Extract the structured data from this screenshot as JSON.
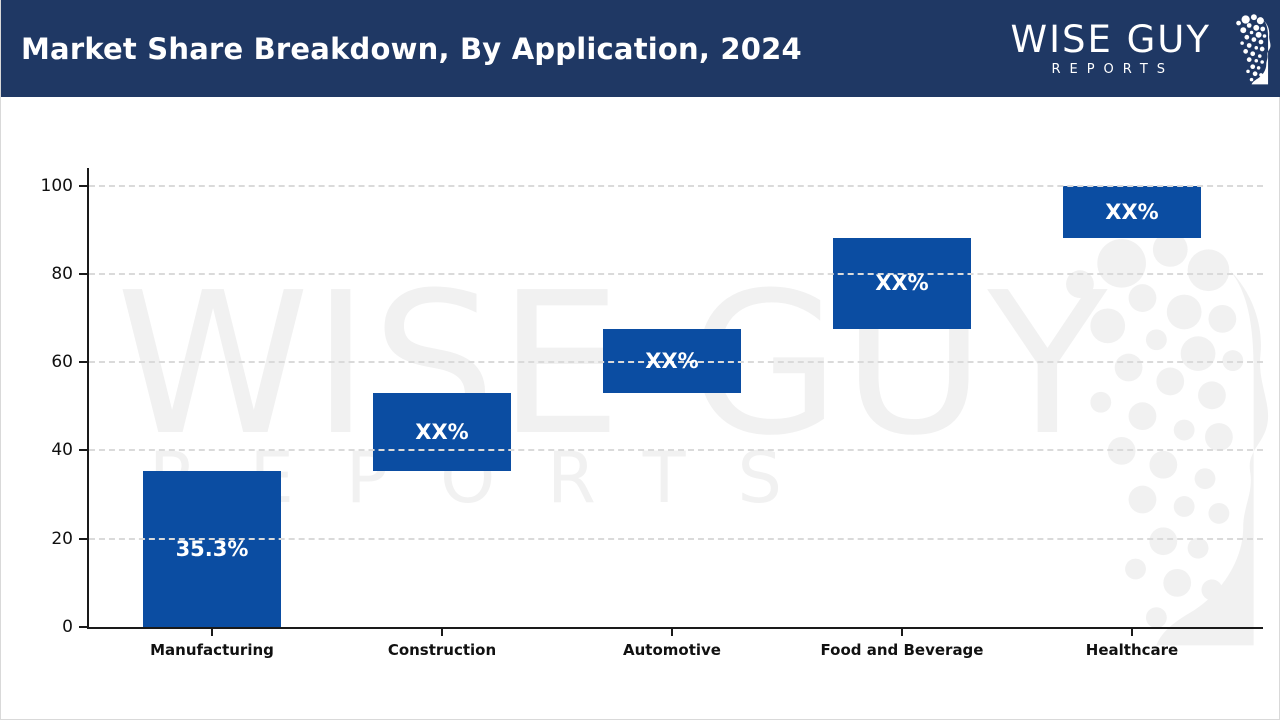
{
  "header": {
    "title": "Market Share Breakdown, By Application, 2024",
    "bg_color": "#1f3864",
    "logo": {
      "line1": "WISE GUY",
      "line2": "REPORTS",
      "head_icon": "dotted-head-icon"
    }
  },
  "watermark": {
    "line1": "WISE GUY",
    "line2": "REPORTS",
    "head_icon": "dotted-head-icon"
  },
  "chart_data": {
    "type": "bar",
    "subtype": "waterfall",
    "title": "Market Share Breakdown, By Application, 2024",
    "xlabel": "",
    "ylabel": "",
    "categories": [
      "Manufacturing",
      "Construction",
      "Automotive",
      "Food and Beverage",
      "Healthcare"
    ],
    "segments": [
      {
        "category": "Manufacturing",
        "start": 0,
        "end": 35.3,
        "label": "35.3%"
      },
      {
        "category": "Construction",
        "start": 35.3,
        "end": 53.1,
        "label": "XX%"
      },
      {
        "category": "Automotive",
        "start": 53.1,
        "end": 67.5,
        "label": "XX%"
      },
      {
        "category": "Food and Beverage",
        "start": 67.5,
        "end": 88.2,
        "label": "XX%"
      },
      {
        "category": "Healthcare",
        "start": 88.2,
        "end": 100,
        "label": "XX%"
      }
    ],
    "y_ticks": [
      0,
      20,
      40,
      60,
      80,
      100
    ],
    "ylim": [
      0,
      104
    ],
    "gridline_values": [
      20,
      40,
      60,
      80,
      100
    ],
    "grid": true,
    "legend": false,
    "bar_color": "#0b4da2",
    "bar_label_color": "#ffffff",
    "axis_color": "#1a1a1a"
  }
}
